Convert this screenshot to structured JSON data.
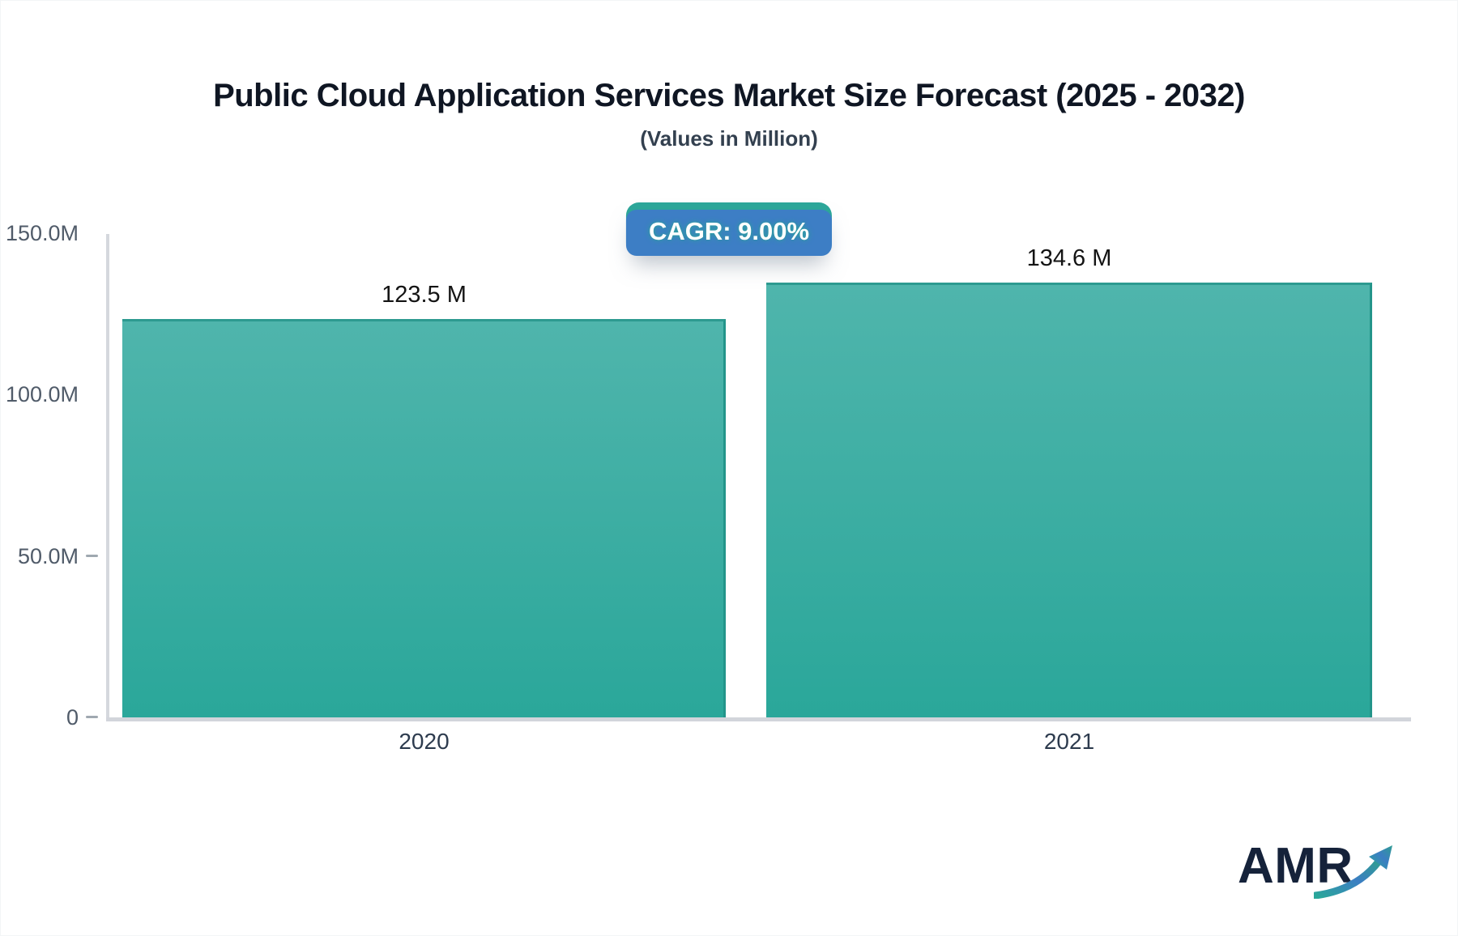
{
  "cagr_badge": {
    "label": "CAGR: 9.00%",
    "bg_color": "#3d7ec5",
    "accent_color": "#2ca699",
    "text_color": "#ffffff"
  },
  "chart_data": {
    "type": "bar",
    "title": "Public Cloud Application Services Market Size Forecast (2025 - 2032)",
    "subtitle": "(Values in Million)",
    "categories": [
      "2020",
      "2021"
    ],
    "values": [
      123.5,
      134.6
    ],
    "value_labels": [
      "123.5 M",
      "134.6 M"
    ],
    "value_unit": "Million",
    "xlabel": "",
    "ylabel": "",
    "ylim": [
      0,
      150
    ],
    "yticks": [
      {
        "value": 150,
        "label": "150.0M",
        "dash": false
      },
      {
        "value": 100,
        "label": "100.0M",
        "dash": false
      },
      {
        "value": 50,
        "label": "50.0M",
        "dash": true
      },
      {
        "value": 0,
        "label": "0",
        "dash": true
      }
    ],
    "grid": false,
    "legend": false,
    "bar_colors": {
      "top": "#4fb5ac",
      "bottom": "#2aa79a",
      "edge": "#2d9a90"
    },
    "axis_color": "#d2d5db"
  },
  "branding": {
    "logo_text": "AMR",
    "logo_color": "#15223a",
    "arrow_colors": {
      "teal": "#2aa79a",
      "blue": "#3b7ec3"
    }
  }
}
